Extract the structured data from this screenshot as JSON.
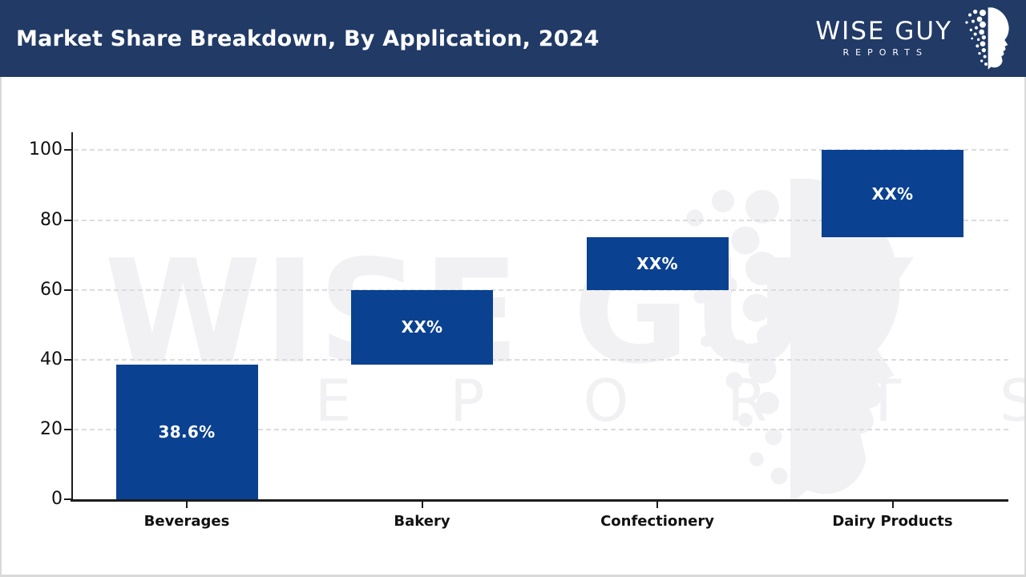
{
  "header": {
    "title": "Market Share Breakdown, By Application, 2024",
    "bg_color": "#213a66",
    "logo": {
      "line1": "WISE GUY",
      "line2": "REPORTS"
    }
  },
  "chart_data": {
    "type": "bar",
    "subtype": "waterfall",
    "title": "Market Share Breakdown, By Application, 2024",
    "categories": [
      "Beverages",
      "Bakery",
      "Confectionery",
      "Dairy Products"
    ],
    "segments": [
      {
        "category": "Beverages",
        "start": 0,
        "end": 38.6,
        "label": "38.6%"
      },
      {
        "category": "Bakery",
        "start": 38.6,
        "end": 60,
        "label": "XX%"
      },
      {
        "category": "Confectionery",
        "start": 60,
        "end": 75,
        "label": "XX%"
      },
      {
        "category": "Dairy Products",
        "start": 75,
        "end": 100,
        "label": "XX%"
      }
    ],
    "y_ticks": [
      0,
      20,
      40,
      60,
      80,
      100
    ],
    "ylim": [
      0,
      100
    ],
    "xlabel": "",
    "ylabel": "",
    "grid": "horizontal-dashed",
    "legend": "none",
    "bar_color": "#0a4191",
    "value_label_color": "#ffffff",
    "axis_color": "#1c1c1c",
    "grid_color": "#dcdcdc",
    "watermark": {
      "line1": "WISE GUY",
      "line2": "R E P O R T S"
    }
  }
}
